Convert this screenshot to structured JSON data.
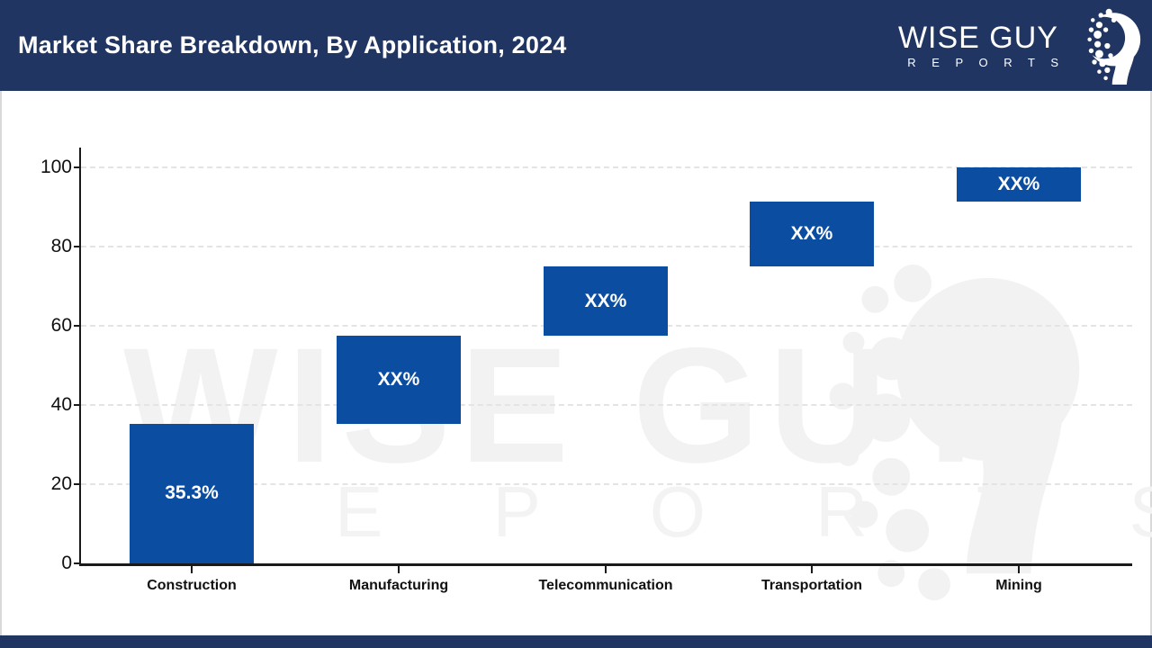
{
  "header": {
    "title": "Market Share Breakdown, By Application, 2024",
    "logo_line1": "WISE GUY",
    "logo_line2": "R E P O R T S"
  },
  "watermark": {
    "line1": "WISE GUY",
    "line2": "R E P O R T S"
  },
  "chart_data": {
    "type": "bar",
    "subtype": "floating-waterfall",
    "title": "Market Share Breakdown, By Application, 2024",
    "categories": [
      "Construction",
      "Manufacturing",
      "Telecommunication",
      "Transportation",
      "Mining"
    ],
    "segments": [
      {
        "category": "Construction",
        "start": 0,
        "end": 35.3,
        "label": "35.3%"
      },
      {
        "category": "Manufacturing",
        "start": 35.3,
        "end": 57.5,
        "label": "XX%"
      },
      {
        "category": "Telecommunication",
        "start": 57.5,
        "end": 75.0,
        "label": "XX%"
      },
      {
        "category": "Transportation",
        "start": 75.0,
        "end": 91.4,
        "label": "XX%"
      },
      {
        "category": "Mining",
        "start": 91.4,
        "end": 100,
        "label": "XX%"
      }
    ],
    "ylim": [
      0,
      100
    ],
    "yticks": [
      0,
      20,
      40,
      60,
      80,
      100
    ],
    "xlabel": "",
    "ylabel": "",
    "grid": "horizontal-dashed",
    "legend_position": "none",
    "bar_color": "#0b4da1",
    "bar_label_color": "#ffffff"
  },
  "colors": {
    "header_bg": "#203561",
    "footer_bg": "#203561",
    "bar": "#0b4da1",
    "axis": "#1a1a1a",
    "grid": "#e4e4e4",
    "watermark": "#f2f2f3"
  }
}
